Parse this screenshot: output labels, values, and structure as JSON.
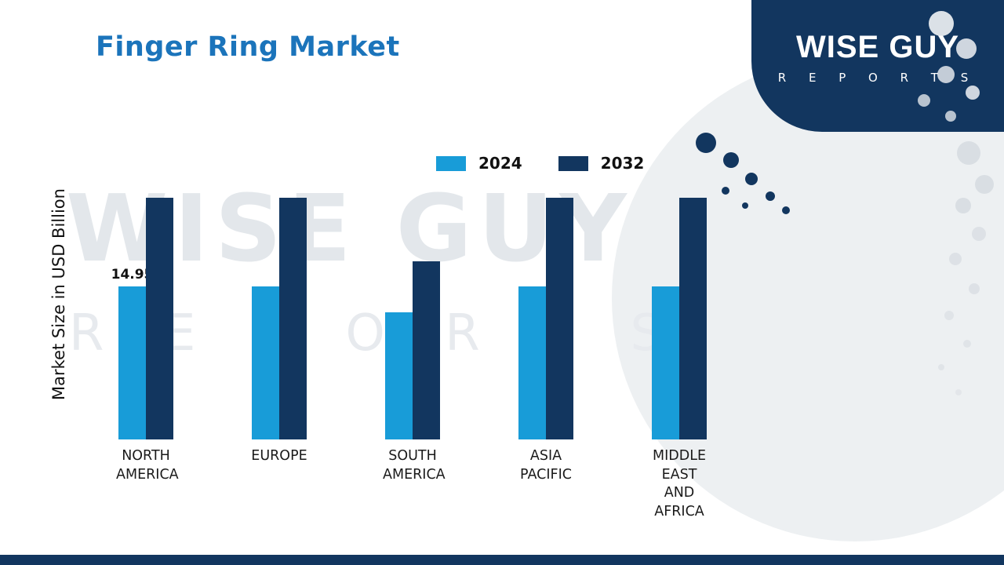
{
  "header": {
    "title": "Finger Ring Market"
  },
  "logo": {
    "name": "WISE GUY",
    "sub": "R E P O R T S"
  },
  "watermark": {
    "line1": "WISE GUY",
    "line2": "R E P O R T S"
  },
  "theme": {
    "title_color": "#1b74bb",
    "bar_2024_color": "#189cd8",
    "bar_2032_color": "#12365f",
    "panel_navy": "#12365f",
    "footer_navy": "#12365f",
    "watermark_gray": "#e3e7eb",
    "background": "#ffffff"
  },
  "chart_data": {
    "type": "bar",
    "title": "Finger Ring Market",
    "ylabel": "Market Size in USD Billion",
    "unit": "USD Billion",
    "categories": [
      "NORTH AMERICA",
      "EUROPE",
      "SOUTH AMERICA",
      "ASIA PACIFIC",
      "MIDDLE EAST AND AFRICA"
    ],
    "series": [
      {
        "name": "2024",
        "color": "#189cd8",
        "values": [
          14.95,
          14.95,
          12.4,
          14.95,
          14.95
        ]
      },
      {
        "name": "2032",
        "color": "#12365f",
        "values": [
          23.6,
          23.6,
          17.4,
          23.6,
          23.6
        ]
      }
    ],
    "value_labels": [
      {
        "category_index": 0,
        "series_index": 0,
        "text": "14.95"
      }
    ],
    "ylim": [
      0,
      25
    ],
    "grid": false,
    "legend_position": "top-center"
  }
}
